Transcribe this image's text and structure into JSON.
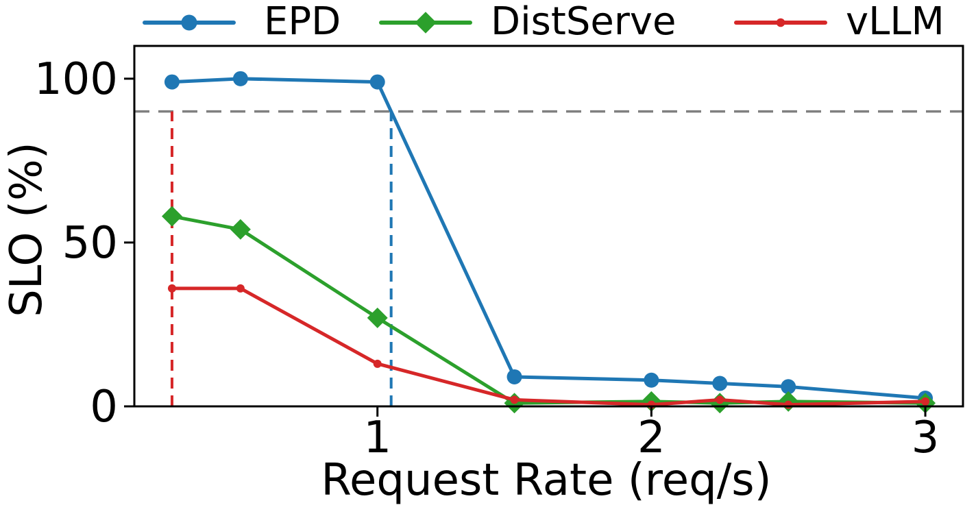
{
  "chart_data": {
    "type": "line",
    "title": "",
    "xlabel": "Request Rate (req/s)",
    "ylabel": "SLO (%)",
    "xlim": [
      0.1125,
      3.1375
    ],
    "ylim": [
      0,
      110
    ],
    "xticks": [
      "1",
      "2",
      "3"
    ],
    "xtick_values": [
      1,
      2,
      3
    ],
    "yticks": [
      "0",
      "50",
      "100"
    ],
    "ytick_values": [
      0,
      50,
      100
    ],
    "grid": false,
    "legend_position": "top-outside-horizontal",
    "frame_color": "#000000",
    "series": [
      {
        "name": "EPD",
        "color": "#1f77b4",
        "marker": "circle",
        "marker_size": 11,
        "x": [
          0.25,
          0.5,
          1.0,
          1.5,
          2.0,
          2.25,
          2.5,
          3.0
        ],
        "y": [
          99,
          100,
          99,
          9,
          8,
          7,
          6,
          2.5
        ]
      },
      {
        "name": "DistServe",
        "color": "#2ca02c",
        "marker": "diamond",
        "marker_size": 15,
        "x": [
          0.25,
          0.5,
          1.0,
          1.5,
          2.0,
          2.25,
          2.5,
          3.0
        ],
        "y": [
          58,
          54,
          27,
          1,
          1.5,
          1,
          1.5,
          1
        ]
      },
      {
        "name": "vLLM",
        "color": "#d62728",
        "marker": "circle",
        "marker_size": 6,
        "x": [
          0.25,
          0.5,
          1.0,
          1.5,
          2.0,
          2.25,
          2.5,
          3.0
        ],
        "y": [
          36,
          36,
          13,
          2,
          0.5,
          2,
          0.5,
          1.5
        ]
      }
    ],
    "reference_lines": [
      {
        "type": "hline",
        "y": 90,
        "color": "#808080",
        "style": "dashed",
        "label": "slo-threshold-90pct"
      },
      {
        "type": "vline",
        "x": 0.25,
        "y_top": 90,
        "color": "#d62728",
        "style": "dashed",
        "label": "vllm-goodput-rate"
      },
      {
        "type": "vline",
        "x": 1.05,
        "y_top": 90,
        "color": "#1f77b4",
        "style": "dashed",
        "label": "epd-goodput-rate"
      }
    ]
  }
}
